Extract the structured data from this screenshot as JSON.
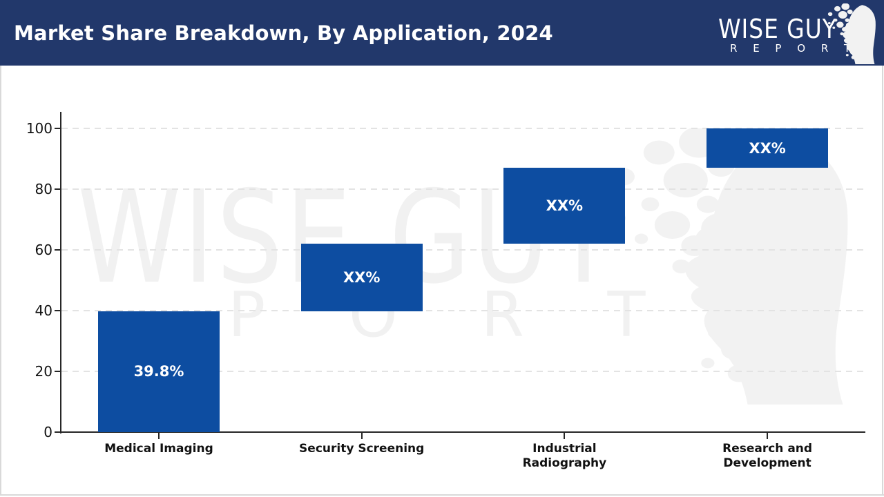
{
  "header": {
    "title": "Market Share Breakdown, By Application, 2024",
    "bg_color": "#22386b",
    "logo": {
      "line1": "WISE GUY",
      "line2": "R E P O R T S"
    }
  },
  "watermark": {
    "line1": "WISE GUY",
    "line2": "P O R T S"
  },
  "chart_data": {
    "type": "bar",
    "subtype": "waterfall",
    "title": "Market Share Breakdown, By Application, 2024",
    "categories": [
      "Medical Imaging",
      "Security Screening",
      "Industrial Radiography",
      "Research and Development"
    ],
    "category_label_lines": [
      [
        "Medical Imaging"
      ],
      [
        "Security Screening"
      ],
      [
        "Industrial",
        "Radiography"
      ],
      [
        "Research and",
        "Development"
      ]
    ],
    "segments": [
      {
        "category": "Medical Imaging",
        "start": 0,
        "end": 39.8,
        "label": "39.8%"
      },
      {
        "category": "Security Screening",
        "start": 39.8,
        "end": 62,
        "label": "XX%"
      },
      {
        "category": "Industrial Radiography",
        "start": 62,
        "end": 87,
        "label": "XX%"
      },
      {
        "category": "Research and Development",
        "start": 87,
        "end": 100,
        "label": "XX%"
      }
    ],
    "xlabel": "",
    "ylabel": "",
    "ylim": [
      0,
      100
    ],
    "yticks": [
      0,
      20,
      40,
      60,
      80,
      100
    ],
    "grid": "horizontal-dashed",
    "legend": "none",
    "bar_color": "#0d4da1",
    "bar_value_label_color": "#ffffff",
    "axis_color": "#262626"
  }
}
